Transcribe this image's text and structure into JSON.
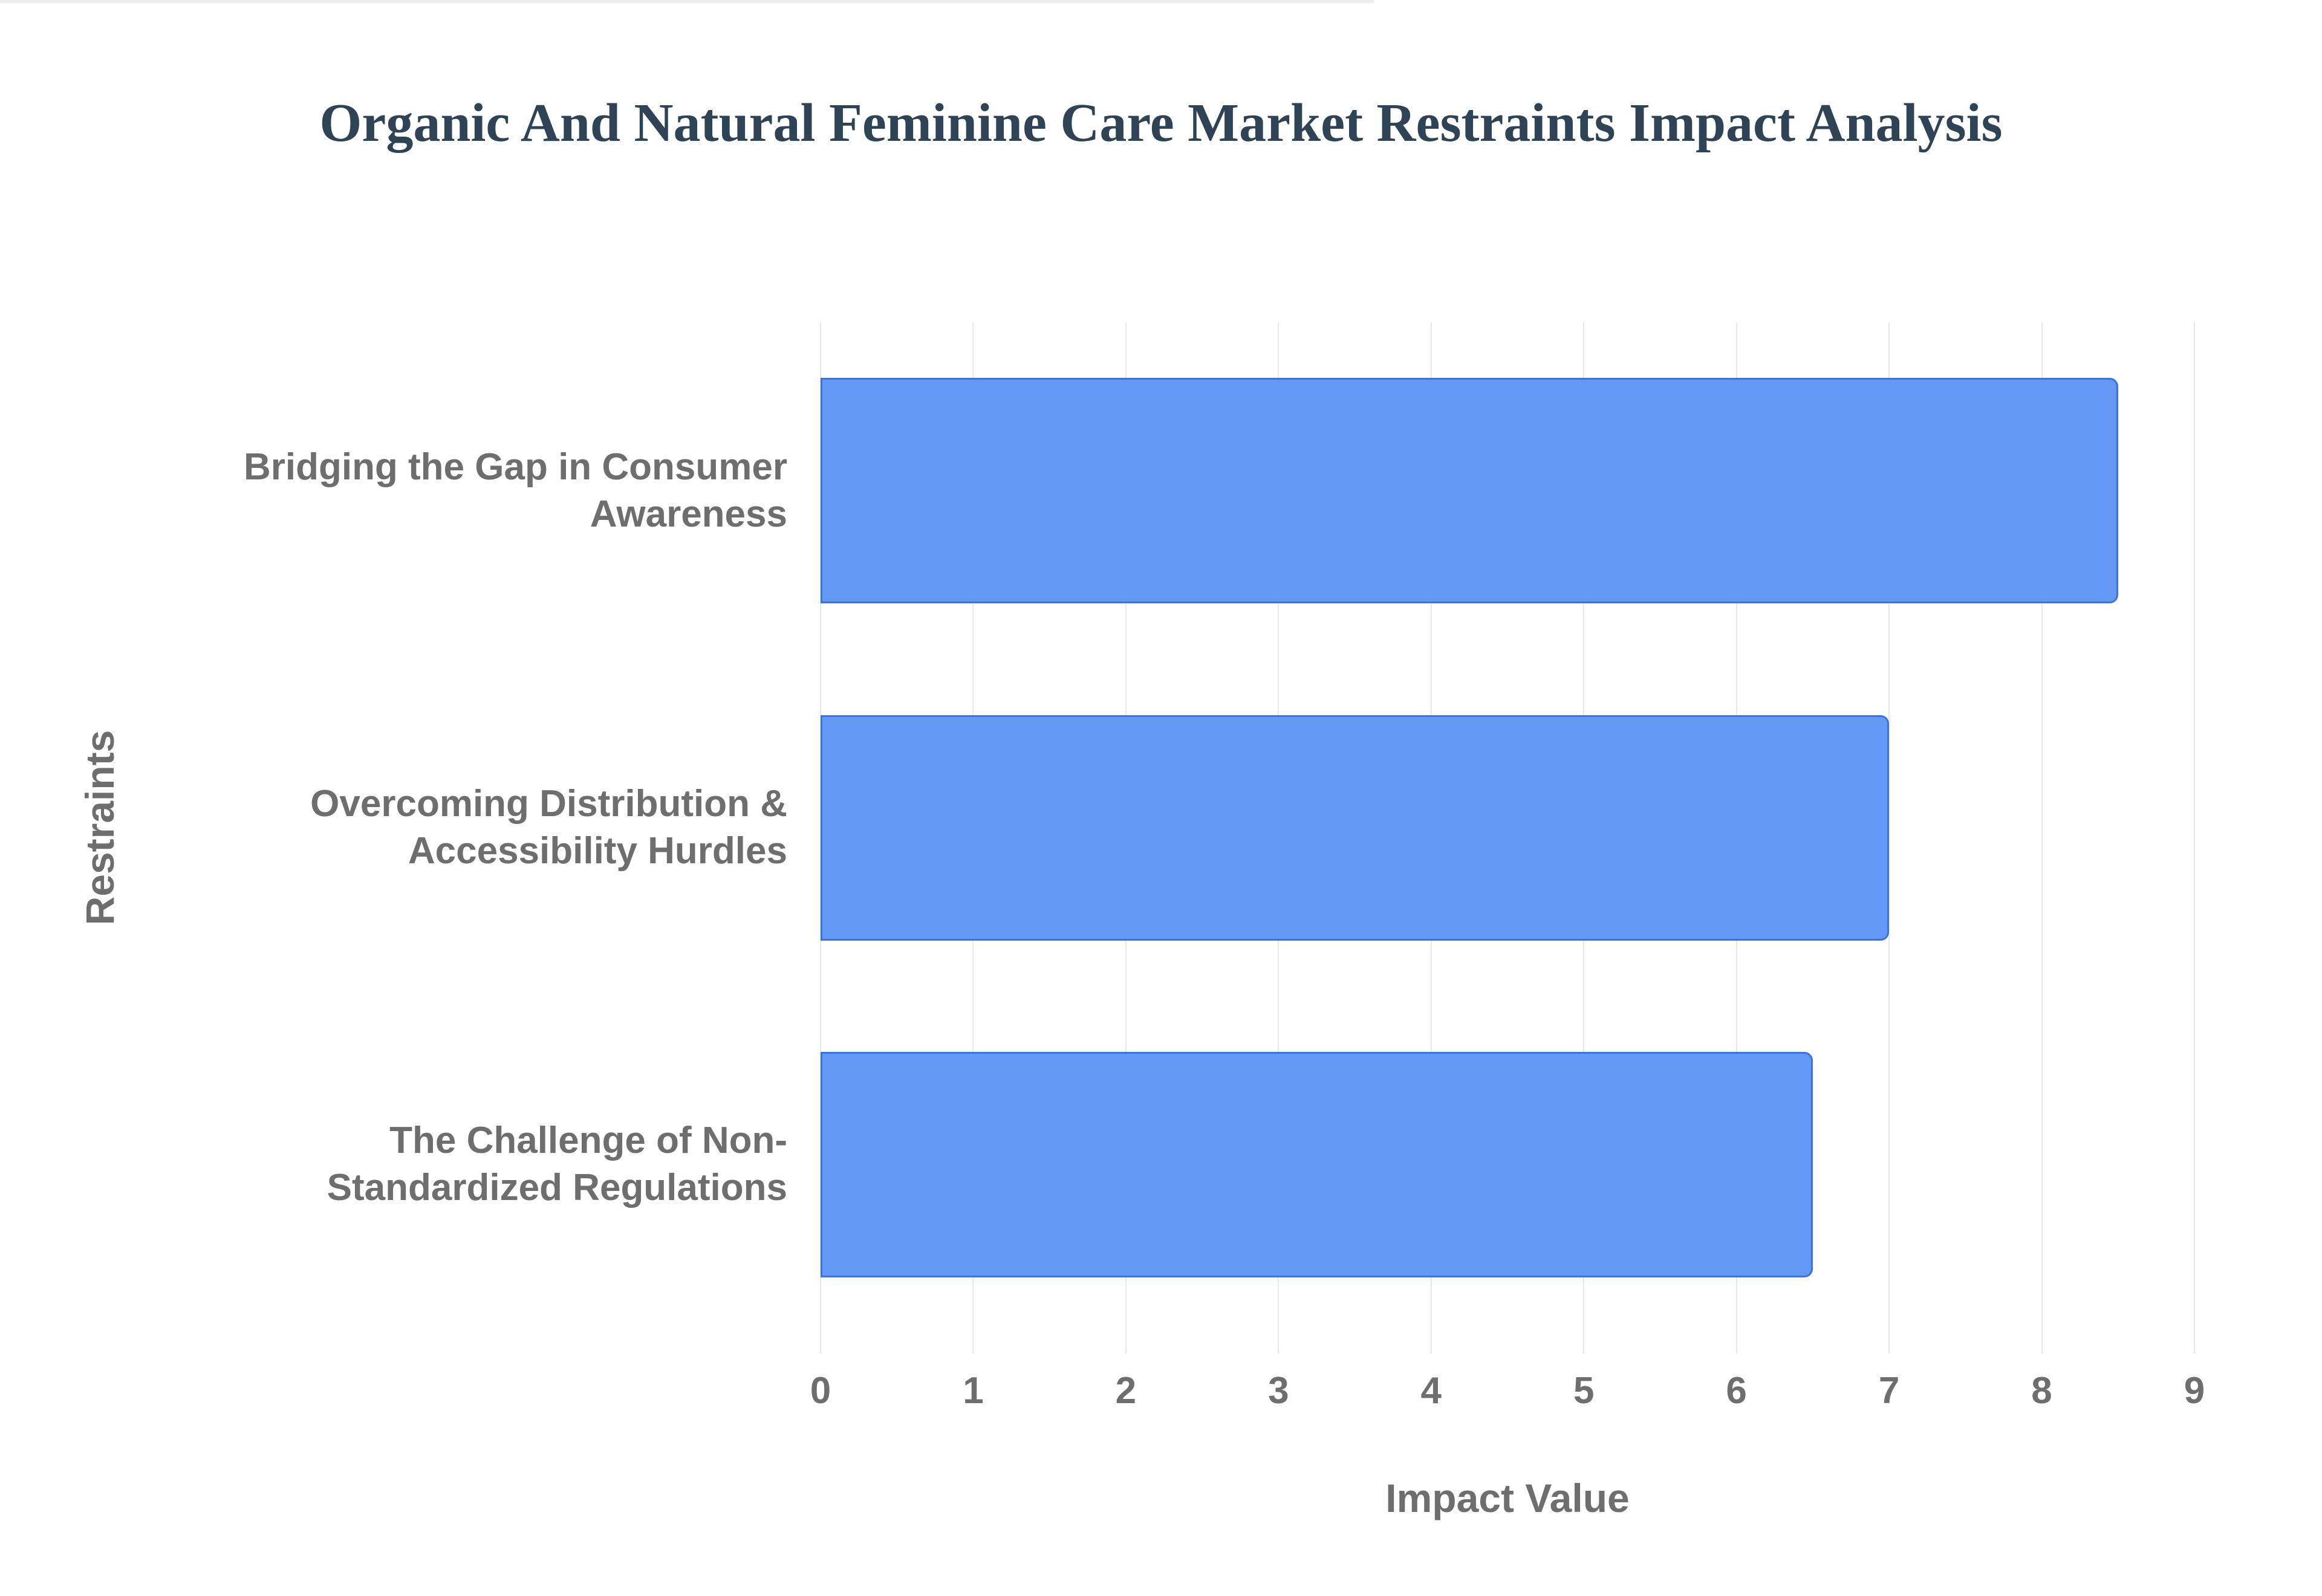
{
  "chart_data": {
    "type": "bar",
    "orientation": "horizontal",
    "title": "Organic And Natural Feminine Care Market Restraints Impact Analysis",
    "categories": [
      "Bridging the Gap in Consumer Awareness",
      "Overcoming Distribution & Accessibility Hurdles",
      "The Challenge of Non-Standardized Regulations"
    ],
    "values": [
      8.5,
      7,
      6.5
    ],
    "xlabel": "Impact Value",
    "ylabel": "Restraints",
    "xlim": [
      0,
      9
    ],
    "xticks": [
      0,
      1,
      2,
      3,
      4,
      5,
      6,
      7,
      8,
      9
    ],
    "grid": true,
    "legend_position": "none",
    "colors": {
      "bar_fill": "#6399f4",
      "bar_border": "#3d74dc",
      "grid_line": "#e8e8e8",
      "axis_line": "#ededed",
      "title_text": "#2f4356",
      "label_text": "#6e6e6e"
    }
  }
}
